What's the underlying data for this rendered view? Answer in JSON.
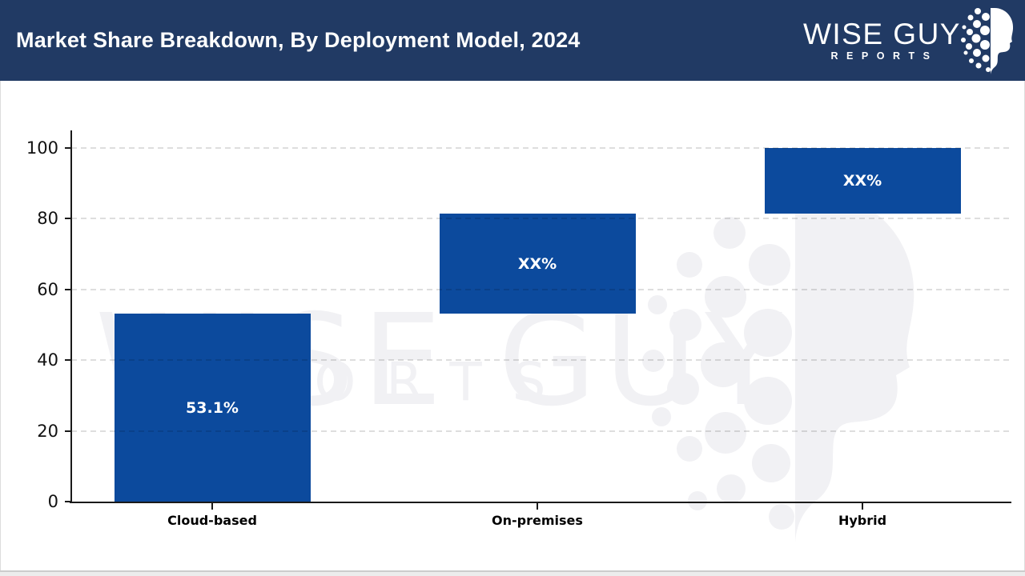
{
  "header": {
    "title": "Market Share Breakdown, By Deployment Model, 2024",
    "logo": {
      "line1": "WISE GUY",
      "line2": "REPORTS",
      "head_icon": "dotted-face-profile"
    }
  },
  "watermark": {
    "line1": "WISE GUY",
    "line2": "REPORTS",
    "head_icon": "dotted-face-profile"
  },
  "colors": {
    "header_bg": "#213a64",
    "bar": "#0c4a9d",
    "gridline": "rgba(0,0,0,0.13)",
    "axis": "#1a1a1a",
    "bar_label_text": "#ffffff",
    "watermark": "#f1f1f4"
  },
  "chart_data": {
    "type": "bar",
    "subtype": "waterfall",
    "title": "Market Share Breakdown, By Deployment Model, 2024",
    "categories": [
      "Cloud-based",
      "On-premises",
      "Hybrid"
    ],
    "segments": [
      {
        "category": "Cloud-based",
        "start": 0,
        "end": 53.1,
        "label": "53.1%"
      },
      {
        "category": "On-premises",
        "start": 53.1,
        "end": 81.5,
        "label": "XX%"
      },
      {
        "category": "Hybrid",
        "start": 81.5,
        "end": 100,
        "label": "XX%"
      }
    ],
    "xlabel": "",
    "ylabel": "",
    "yticks": [
      0,
      20,
      40,
      60,
      80,
      100
    ],
    "ylim": [
      0,
      105
    ],
    "grid": "horizontal-dashed-over-bars",
    "legend": "none"
  }
}
